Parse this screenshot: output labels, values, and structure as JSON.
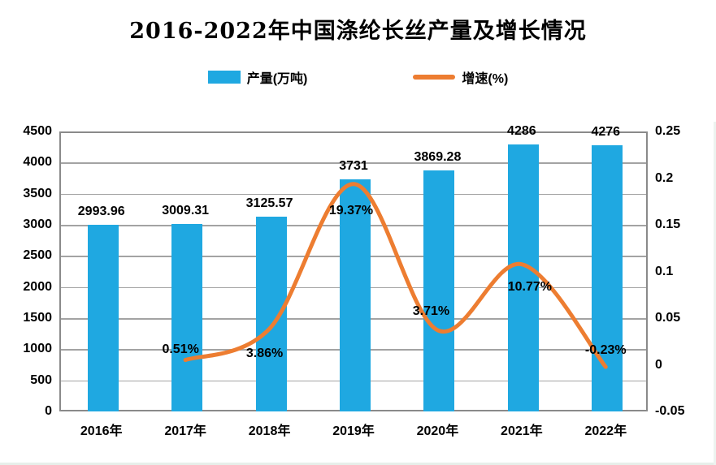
{
  "title": "2016-2022年中国涤纶长丝产量及增长情况",
  "legend": {
    "items": [
      {
        "label": "产量(万吨)",
        "marker": "bar-swatch"
      },
      {
        "label": "增速(%)",
        "marker": "line-swatch"
      }
    ]
  },
  "colors": {
    "bar": "#1FA8E1",
    "line": "#ED7D31",
    "grid": "#A3A3A3",
    "plot_border": "#8A8A8A",
    "axis_text": "#000000"
  },
  "chart_data": {
    "type": "bar",
    "subtype": "combo-bar-line-dual-axis",
    "title": "2016-2022年中国涤纶长丝产量及增长情况",
    "categories": [
      "2016年",
      "2017年",
      "2018年",
      "2019年",
      "2020年",
      "2021年",
      "2022年"
    ],
    "series": [
      {
        "name": "产量(万吨)",
        "type": "bar",
        "axis": "left",
        "color": "#1FA8E1",
        "values": [
          2993.96,
          3009.31,
          3125.57,
          3731,
          3869.28,
          4286,
          4276
        ],
        "labels": [
          "2993.96",
          "3009.31",
          "3125.57",
          "3731",
          "3869.28",
          "4286",
          "4276"
        ]
      },
      {
        "name": "增速(%)",
        "type": "line",
        "axis": "right",
        "color": "#ED7D31",
        "values": [
          null,
          0.0051,
          0.0386,
          0.1937,
          0.0371,
          0.1077,
          -0.0023
        ],
        "labels": [
          null,
          "0.51%",
          "3.86%",
          "19.37%",
          "3.71%",
          "10.77%",
          "-0.23%"
        ]
      }
    ],
    "left_axis": {
      "min": 0,
      "max": 4500,
      "step": 500,
      "ticks": [
        "0",
        "500",
        "1000",
        "1500",
        "2000",
        "2500",
        "3000",
        "3500",
        "4000",
        "4500"
      ]
    },
    "right_axis": {
      "min": -0.05,
      "max": 0.25,
      "step": 0.05,
      "ticks": [
        "-0.05",
        "0",
        "0.05",
        "0.1",
        "0.15",
        "0.2",
        "0.25"
      ]
    },
    "grid": true,
    "legend_position": "top",
    "smooth_line": true
  }
}
